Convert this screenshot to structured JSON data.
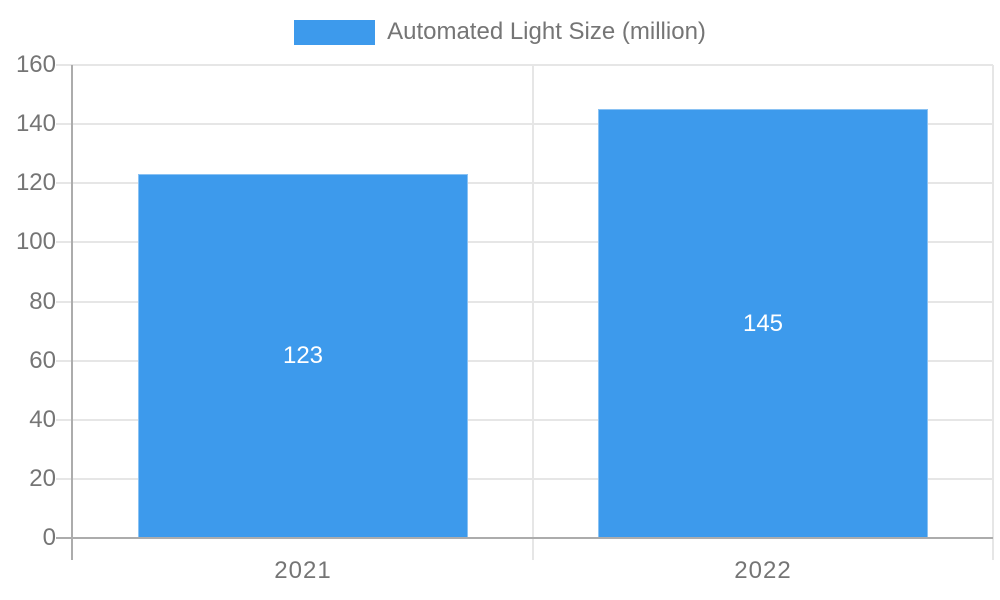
{
  "chart_data": {
    "type": "bar",
    "title": "",
    "legend": {
      "label": "Automated Light Size (million)",
      "position": "top"
    },
    "categories": [
      "2021",
      "2022"
    ],
    "series": [
      {
        "name": "Automated Light Size (million)",
        "values": [
          123,
          145
        ]
      }
    ],
    "value_labels_shown": true,
    "xlabel": "",
    "ylabel": "",
    "ylim": [
      0,
      160
    ],
    "ytick_step": 20,
    "yticks": [
      0,
      20,
      40,
      60,
      80,
      100,
      120,
      140,
      160
    ],
    "grid": true,
    "colors": {
      "bar": "#3d9aec",
      "grid": "#e6e6e6",
      "axis": "#acacac",
      "tick_label": "#757575",
      "value_label": "#ffffff",
      "background": "#ffffff"
    }
  }
}
